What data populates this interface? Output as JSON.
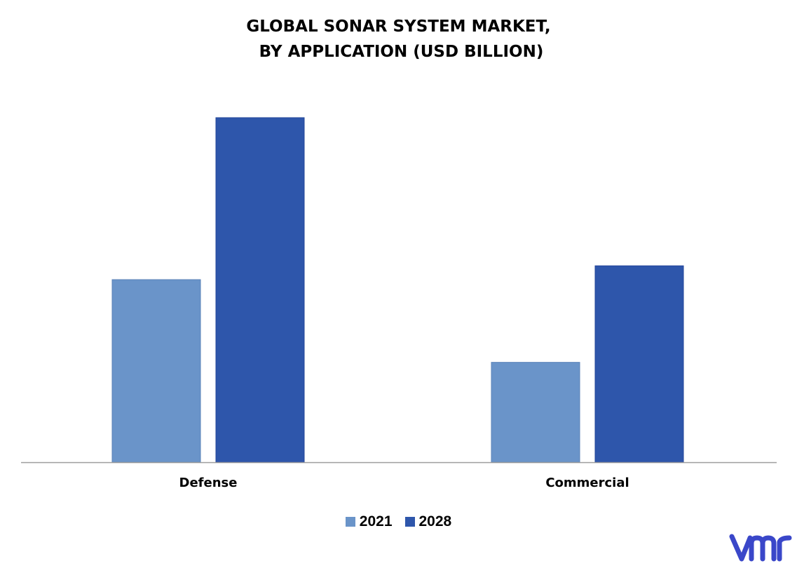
{
  "chart_data": {
    "type": "bar",
    "title_lines": [
      "GLOBAL SONAR SYSTEM MARKET,",
      " BY APPLICATION (USD BILLION)"
    ],
    "categories": [
      "Defense",
      "Commercial"
    ],
    "series": [
      {
        "name": "2021",
        "color": "#6a94c9",
        "values": [
          53,
          29
        ]
      },
      {
        "name": "2028",
        "color": "#2e56ab",
        "values": [
          100,
          57
        ]
      }
    ],
    "ylim": [
      0,
      100
    ],
    "grid": false,
    "legend": "bottom",
    "xlabel": "",
    "ylabel": ""
  },
  "brand": {
    "logo_icon": "vmr-logo-icon",
    "logo_color": "#3a47c9"
  }
}
